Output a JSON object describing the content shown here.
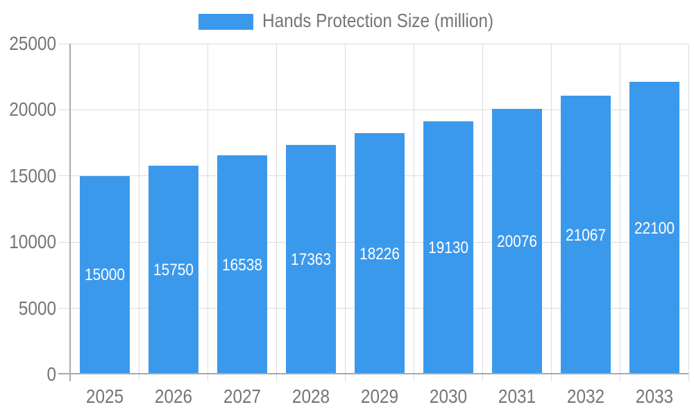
{
  "legend": {
    "label": "Hands Protection Size (million)",
    "position": "top"
  },
  "colors": {
    "bar": "#3B99EC",
    "bar_label": "#FFFFFF",
    "text": "#757575",
    "axis": "#A9A9A9",
    "grid": "#DCDCDC",
    "background": "#FFFFFF"
  },
  "chart_data": {
    "type": "bar",
    "title": "Hands Protection Size (million)",
    "series_name": "Hands Protection Size (million)",
    "categories": [
      "2025",
      "2026",
      "2027",
      "2028",
      "2029",
      "2030",
      "2031",
      "2032",
      "2033"
    ],
    "values": [
      15000,
      15750,
      16538,
      17363,
      18226,
      19130,
      20076,
      21067,
      22100
    ],
    "value_labels": [
      "15000",
      "15750",
      "16538",
      "17363",
      "18226",
      "19130",
      "20076",
      "21067",
      "22100"
    ],
    "xlabel": "",
    "ylabel": "",
    "ylim": [
      0,
      25000
    ],
    "yticks": [
      0,
      5000,
      10000,
      15000,
      20000,
      25000
    ],
    "ytick_labels": [
      "0",
      "5000",
      "10000",
      "15000",
      "20000",
      "25000"
    ],
    "grid": true,
    "value_labels_inside": true,
    "legend_position": "top"
  }
}
